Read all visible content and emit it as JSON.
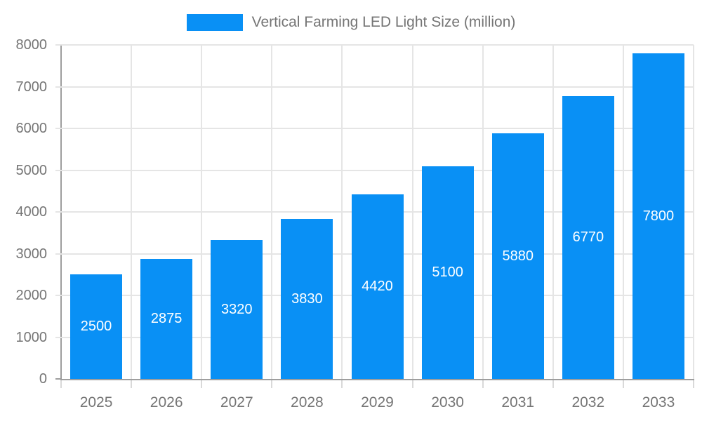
{
  "chart_data": {
    "type": "bar",
    "title": "Vertical Farming LED Light Size (million)",
    "categories": [
      "2025",
      "2026",
      "2027",
      "2028",
      "2029",
      "2030",
      "2031",
      "2032",
      "2033"
    ],
    "series": [
      {
        "name": "Vertical Farming LED Light Size (million)",
        "values": [
          2500,
          2875,
          3320,
          3830,
          4420,
          5100,
          5880,
          6770,
          7800
        ]
      }
    ],
    "data_labels": [
      "2500",
      "2875",
      "3320",
      "3830",
      "4420",
      "5100",
      "5880",
      "6770",
      "7800"
    ],
    "xlabel": "",
    "ylabel": "",
    "ylim": [
      0,
      8000
    ],
    "ytick_step": 1000,
    "ytick_labels": [
      "0",
      "1000",
      "2000",
      "3000",
      "4000",
      "5000",
      "6000",
      "7000",
      "8000"
    ],
    "grid": true,
    "legend_position": "top-center",
    "colors": {
      "bar": "#0990f5",
      "bar_label": "#ffffff",
      "gridline": "#e5e5e5",
      "axis": "#9e9e9e",
      "tick": "#d9d9d9",
      "axis_label": "#757575",
      "legend_text": "#757575",
      "background": "#ffffff"
    }
  }
}
